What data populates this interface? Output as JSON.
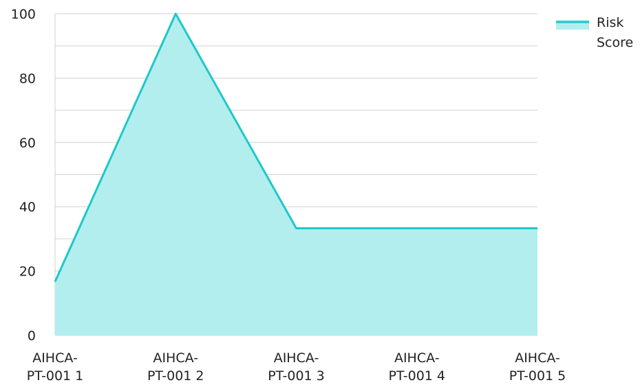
{
  "chart_data": {
    "type": "area",
    "categories": [
      "AIHCA-PT-001 1",
      "AIHCA-PT-001 2",
      "AIHCA-PT-001 3",
      "AIHCA-PT-001 4",
      "AIHCA-PT-001 5"
    ],
    "category_lines": [
      [
        "AIHCA-",
        "PT-001 1"
      ],
      [
        "AIHCA-",
        "PT-001 2"
      ],
      [
        "AIHCA-",
        "PT-001 3"
      ],
      [
        "AIHCA-",
        "PT-001 4"
      ],
      [
        "AIHCA-",
        "PT-001 5"
      ]
    ],
    "series": [
      {
        "name": "Risk Score",
        "values": [
          16.7,
          100,
          33.3,
          33.3,
          33.3
        ]
      }
    ],
    "legend": {
      "position": "top-right",
      "lines": [
        "Risk",
        "Score"
      ]
    },
    "ylim": [
      0,
      100
    ],
    "yticks": [
      0,
      20,
      40,
      60,
      80,
      100
    ],
    "grid": true,
    "colors": {
      "line": "#1ec8c8",
      "fill": "#b2eeee",
      "grid": "#d0d0d0",
      "text": "#222222"
    }
  }
}
